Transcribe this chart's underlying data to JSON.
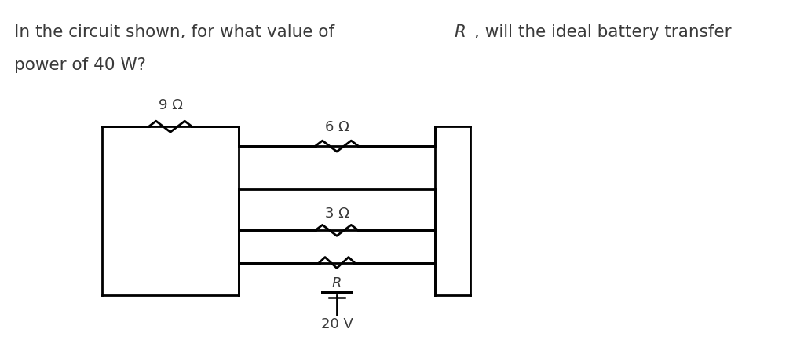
{
  "question_line1": "In the circuit shown, for what value of ",
  "question_R": "R",
  "question_line1_end": ", will the ideal battery transfer",
  "question_line2": "power of 40 W?",
  "resistor_9_label": "9 Ω",
  "resistor_6_label": "6 Ω",
  "resistor_3_label": "3 Ω",
  "resistor_R_label": "R",
  "battery_label": "20 V",
  "bg_color": "#ffffff",
  "line_color": "#000000",
  "text_color": "#3a3a3a",
  "font_size_question": 15.5,
  "font_size_labels": 13
}
